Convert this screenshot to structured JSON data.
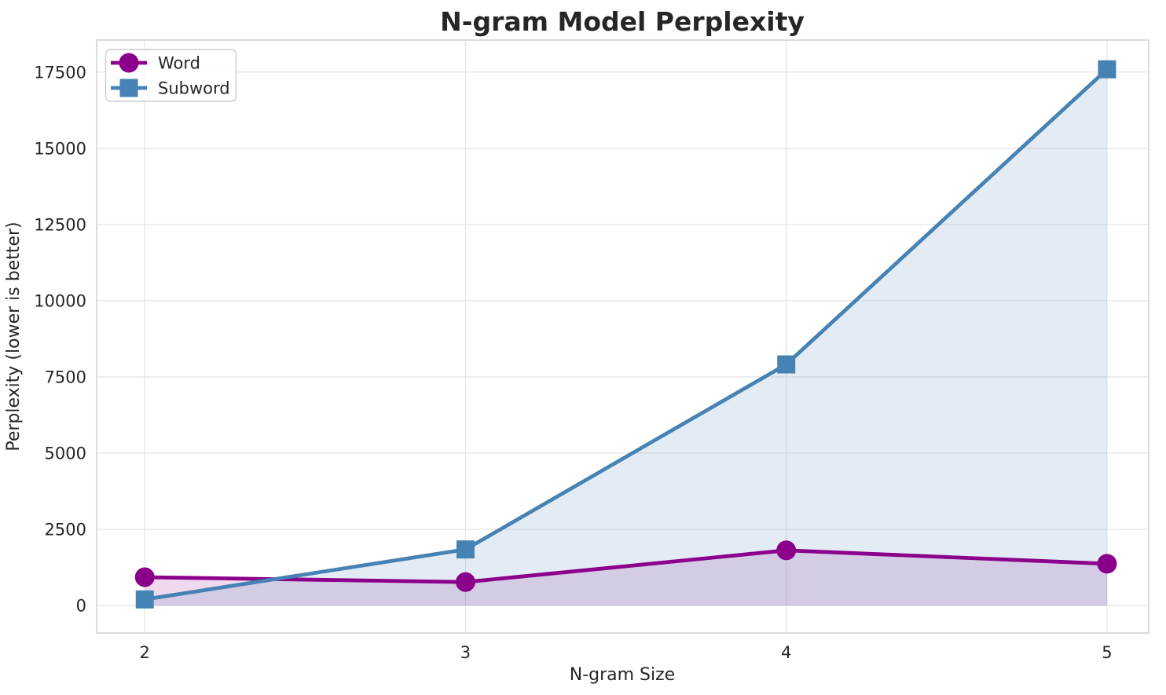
{
  "chart_data": {
    "type": "line",
    "title": "N-gram Model Perplexity",
    "xlabel": "N-gram Size",
    "ylabel": "Perplexity (lower is better)",
    "x": [
      2,
      3,
      4,
      5
    ],
    "xtick_labels": [
      "2",
      "3",
      "4",
      "5"
    ],
    "yticks": [
      0,
      2500,
      5000,
      7500,
      10000,
      12500,
      15000,
      17500
    ],
    "ytick_labels": [
      "0",
      "2500",
      "5000",
      "7500",
      "10000",
      "12500",
      "15000",
      "17500"
    ],
    "xlim": [
      1.85,
      5.13
    ],
    "ylim": [
      -900,
      18550
    ],
    "grid": true,
    "legend": {
      "position": "upper left",
      "entries": [
        "Word",
        "Subword"
      ]
    },
    "series": [
      {
        "name": "Word",
        "color": "#8B008B",
        "marker": "circle",
        "values": [
          930,
          770,
          1810,
          1370
        ],
        "fill_to_zero": true,
        "fill_alpha": 0.15
      },
      {
        "name": "Subword",
        "color": "#4682B4",
        "marker": "square",
        "values": [
          200,
          1840,
          7910,
          17590
        ],
        "fill_to_zero": true,
        "fill_alpha": 0.15
      }
    ],
    "style": {
      "grid_color": "#E5E5E5",
      "spine_color": "#D9D9D9",
      "text_color": "#262626",
      "background": "#FFFFFF",
      "legend_border_color": "#CCCCCC",
      "legend_background": "#FFFFFF"
    }
  }
}
